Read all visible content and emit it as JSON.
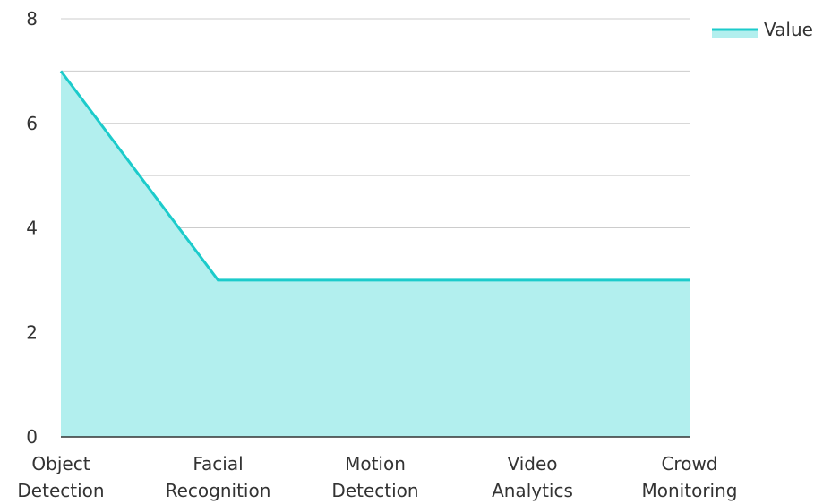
{
  "chart_data": {
    "type": "area",
    "categories": [
      [
        "Object",
        "Detection"
      ],
      [
        "Facial",
        "Recognition"
      ],
      [
        "Motion",
        "Detection"
      ],
      [
        "Video",
        "Analytics"
      ],
      [
        "Crowd",
        "Monitoring"
      ]
    ],
    "series": [
      {
        "name": "Value",
        "values": [
          7,
          3,
          3,
          3,
          3
        ]
      }
    ],
    "ylim": [
      0,
      8
    ],
    "yticks": [
      0,
      2,
      4,
      6,
      8
    ],
    "grid": true,
    "legend_position": "top-right",
    "colors": {
      "line": "#1ccbcb",
      "fill": "#b2efee",
      "grid": "#cccccc",
      "axis": "#333333"
    }
  }
}
